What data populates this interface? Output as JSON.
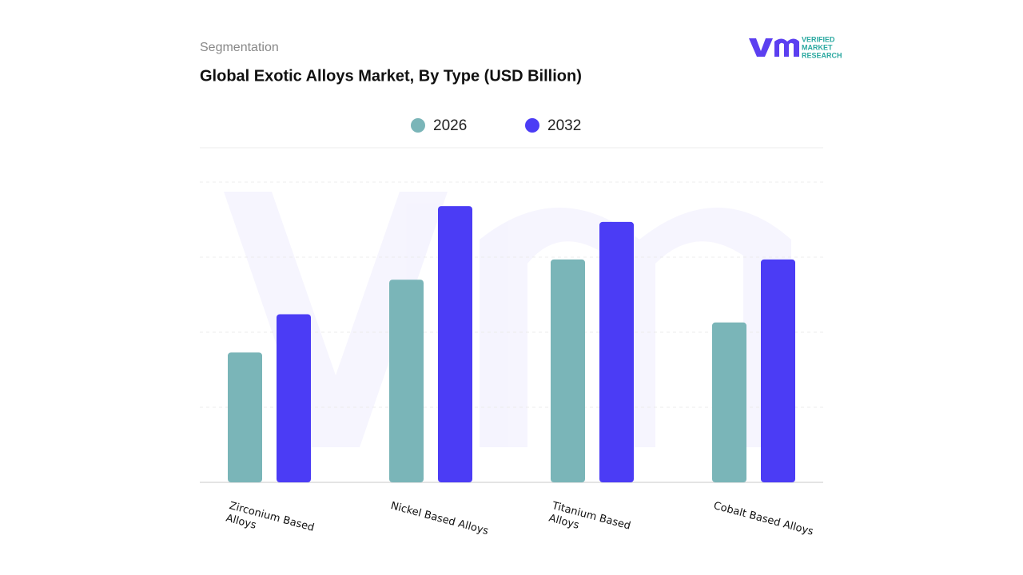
{
  "header": {
    "section": "Segmentation",
    "logo": [
      "VERIFIED",
      "MARKET",
      "RESEARCH"
    ]
  },
  "chart_data": {
    "type": "bar",
    "title": "Global Exotic Alloys Market, By Type (USD Billion)",
    "categories": [
      "Zirconium Based Alloys",
      "Nickel Based Alloys",
      "Titanium Based Alloys",
      "Cobalt Based Alloys"
    ],
    "series": [
      {
        "name": "2026",
        "color": "#7ab5b8",
        "values": [
          1.73,
          2.7,
          2.97,
          2.13
        ]
      },
      {
        "name": "2032",
        "color": "#4b3cf5",
        "values": [
          2.24,
          3.68,
          3.47,
          2.97
        ]
      }
    ],
    "ylim": [
      0,
      4
    ],
    "yticks": [
      0,
      1,
      2,
      3,
      4
    ],
    "grid": true
  }
}
